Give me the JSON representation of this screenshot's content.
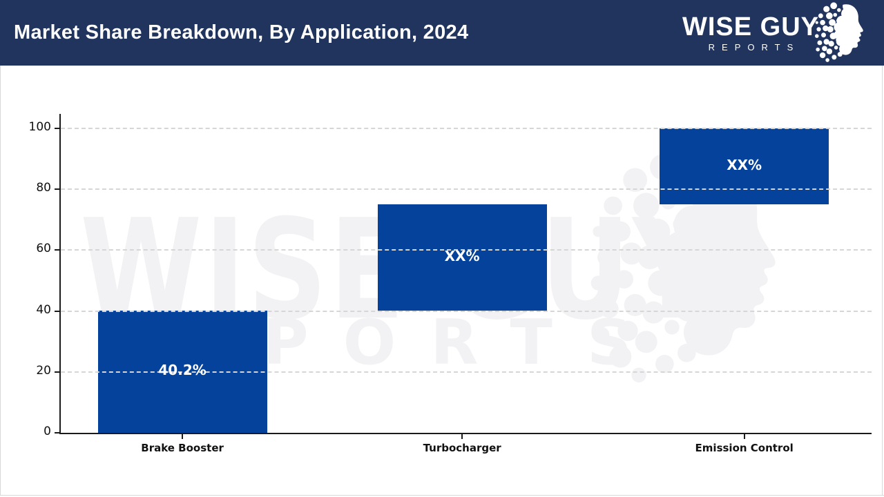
{
  "header": {
    "title": "Market Share Breakdown, By Application, 2024",
    "logo": {
      "line1": "WISE GUY",
      "line2": "REPORTS"
    }
  },
  "watermark": {
    "line1": "WISE GUY",
    "line2": "REPORTS"
  },
  "chart_data": {
    "type": "bar",
    "subtype": "waterfall",
    "title": "Market Share Breakdown, By Application, 2024",
    "categories": [
      "Brake Booster",
      "Turbocharger",
      "Emission Control"
    ],
    "bars": [
      {
        "category": "Brake Booster",
        "start": 0,
        "end": 40.2,
        "label": "40.2%"
      },
      {
        "category": "Turbocharger",
        "start": 40.2,
        "end": 75,
        "label": "XX%"
      },
      {
        "category": "Emission Control",
        "start": 75,
        "end": 100,
        "label": "XX%"
      }
    ],
    "xlabel": "",
    "ylabel": "",
    "ylim": [
      0,
      100
    ],
    "yticks": [
      0,
      20,
      40,
      60,
      80,
      100
    ],
    "grid": "horizontal-dashed",
    "legend": "none",
    "bar_color": "#04429C",
    "bar_label_color": "#ffffff"
  },
  "colors": {
    "header_bg": "#21345E",
    "bar": "#04429C",
    "grid": "#d6d6d6",
    "axis": "#1a1a1a",
    "watermark": "#f2f2f4",
    "title_text": "#ffffff"
  }
}
